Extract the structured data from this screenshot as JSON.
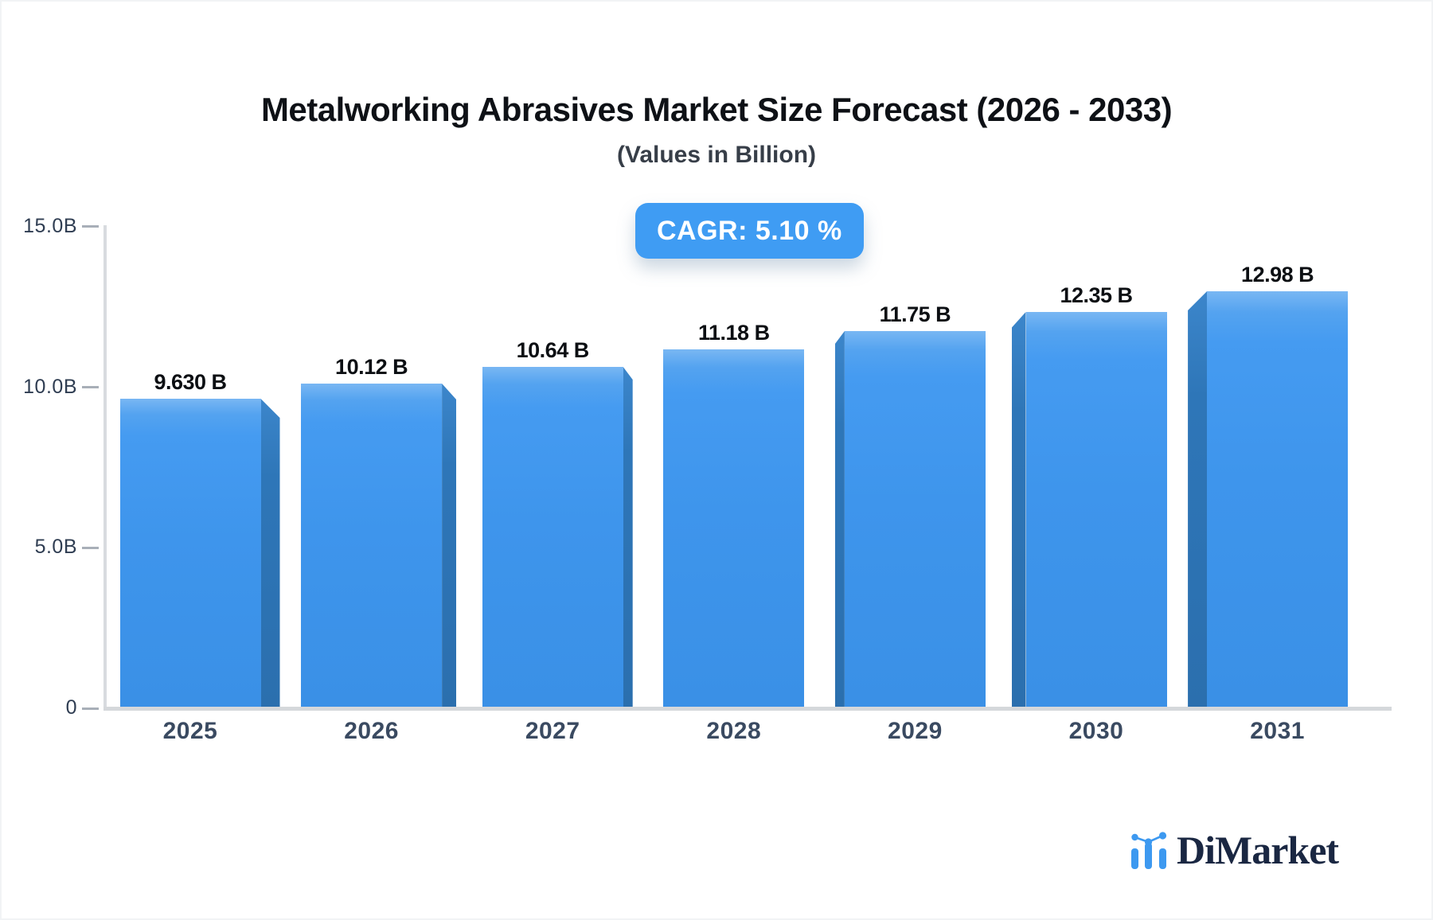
{
  "header": {
    "title": "Metalworking Abrasives Market Size Forecast (2026 - 2033)",
    "subtitle": "(Values in Billion)",
    "cagr_label": "CAGR: 5.10 %"
  },
  "chart_data": {
    "type": "bar",
    "title": "Metalworking Abrasives Market Size Forecast (2026 - 2033)",
    "subtitle": "(Values in Billion)",
    "cagr_percent": 5.1,
    "categories": [
      "2025",
      "2026",
      "2027",
      "2028",
      "2029",
      "2030",
      "2031"
    ],
    "values": [
      9.63,
      10.12,
      10.64,
      11.18,
      11.75,
      12.35,
      12.98
    ],
    "value_labels": [
      "9.630 B",
      "10.12 B",
      "10.64 B",
      "11.18 B",
      "11.75 B",
      "12.35 B",
      "12.98 B"
    ],
    "ylabel": "",
    "xlabel": "",
    "ylim": [
      0,
      15
    ],
    "yticks": [
      {
        "value": 15,
        "label": "15.0B"
      },
      {
        "value": 10,
        "label": "10.0B"
      },
      {
        "value": 5,
        "label": "5.0B"
      },
      {
        "value": 0,
        "label": "0"
      }
    ],
    "grid": false,
    "legend": false,
    "style": "3d-perspective-bars",
    "colors": {
      "bar_main": "#3e95ec",
      "bar_light_top": "#79b7f3",
      "bar_side": "#2d74b6",
      "accent_badge": "#3f9cf3",
      "axis": "#d5d8db",
      "tick_text": "#2f3d52",
      "category_text": "#3a4a61",
      "value_text": "#0c0f13"
    }
  },
  "branding": {
    "logo_text": "DiMarket",
    "logo_icon": "mini-bar-chart-icon",
    "logo_text_color": "#1a2742",
    "logo_accent_color": "#3d99f0"
  }
}
